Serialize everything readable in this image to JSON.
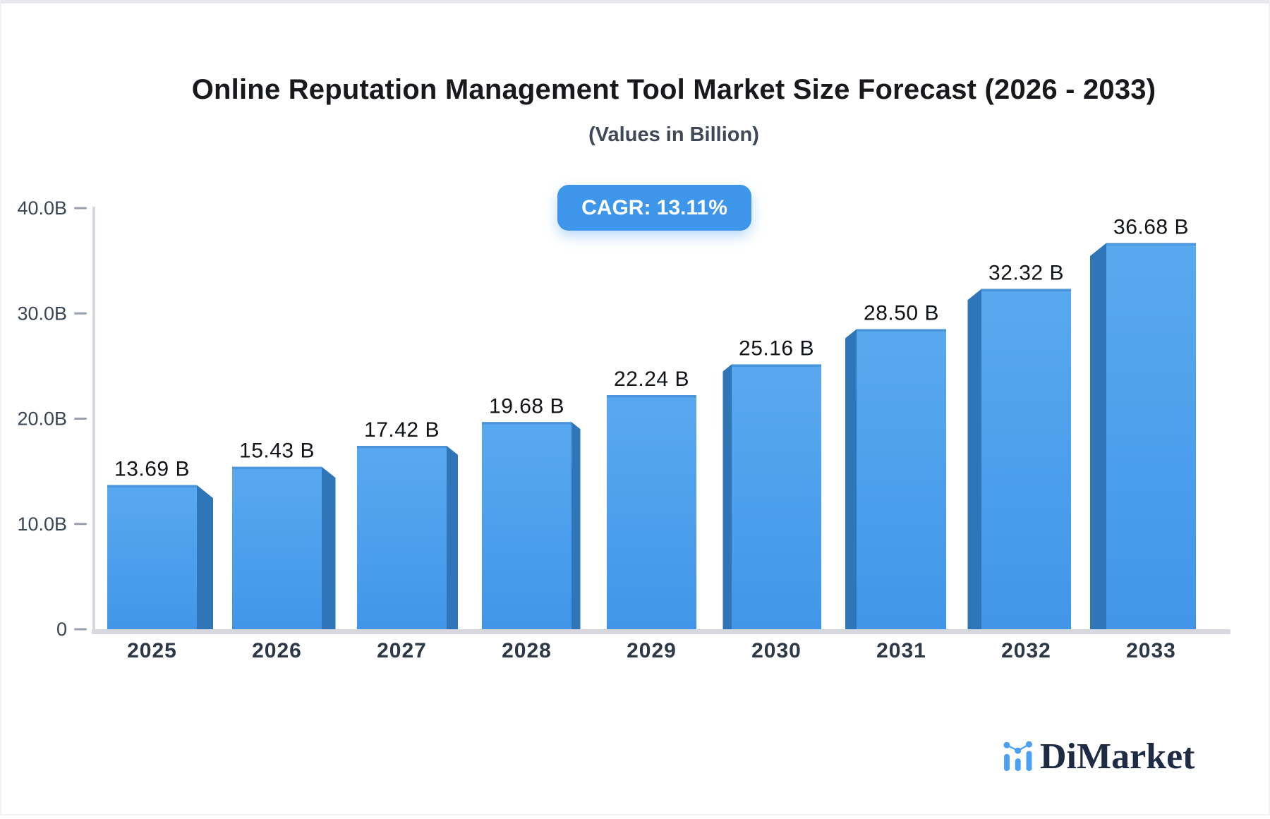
{
  "page": {
    "title": "Online Reputation Management Tool Market Size Forecast (2026 - 2033)",
    "subtitle": "(Values in Billion)",
    "cagr_badge": "CAGR: 13.11%"
  },
  "chart_data": {
    "type": "bar",
    "title": "Online Reputation Management Tool Market Size Forecast (2026 - 2033)",
    "subtitle": "(Values in Billion)",
    "annotation": "CAGR: 13.11%",
    "categories": [
      "2025",
      "2026",
      "2027",
      "2028",
      "2029",
      "2030",
      "2031",
      "2032",
      "2033"
    ],
    "values": [
      13.69,
      15.43,
      17.42,
      19.68,
      22.24,
      25.16,
      28.5,
      32.32,
      36.68
    ],
    "value_labels": [
      "13.69 B",
      "15.43 B",
      "17.42 B",
      "19.68 B",
      "22.24 B",
      "25.16 B",
      "28.50 B",
      "32.32 B",
      "36.68 B"
    ],
    "unit": "Billion",
    "ylim": [
      0,
      40
    ],
    "y_ticks": [
      0,
      10,
      20,
      30,
      40
    ],
    "y_tick_labels": [
      "0",
      "10.0B",
      "20.0B",
      "30.0B",
      "40.0B"
    ],
    "grid": false,
    "legend": false,
    "bar_style": "3d-perspective-center",
    "colors": {
      "bar_top": "#59a9ef",
      "bar_bottom": "#4196e9",
      "bar_side": "#2e76b7",
      "bar_edge": "#4b95da",
      "axis": "#d6d8dd",
      "tick": "#98a0ac",
      "y_label": "#3a4554",
      "value_label": "#101317",
      "x_label": "#2d3847",
      "badge_bg": "#3d96ea",
      "badge_text": "#ffffff"
    }
  },
  "logo": {
    "text": "DiMarket",
    "icon": "bar-line-chart-icon",
    "icon_color": "#4aa0f2"
  }
}
